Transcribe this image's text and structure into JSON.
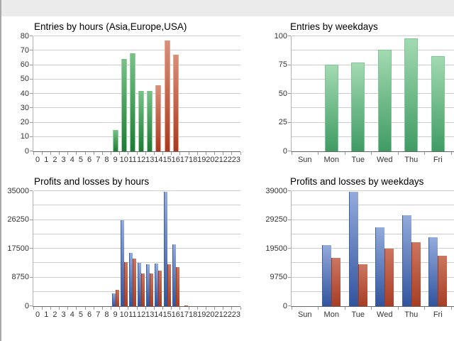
{
  "colors": {
    "topbar": "#ebebeb",
    "window_edge": "#a9a9a9",
    "grid_line": "#cccccc",
    "axis_line": "#666666",
    "axis_side": "#b3b3b3",
    "tick_text": "#333333",
    "title_text": "#000000",
    "green_top": "#79c289",
    "green_bottom": "#1d7c33",
    "green_edge": "#9ccfa6",
    "red_top": "#da9078",
    "red_bottom": "#aa3a20",
    "red_edge": "#e0a795",
    "green2_top": "#a3dab1",
    "green2_bottom": "#3f9b63",
    "green2_edge": "#7fc596",
    "blue_top": "#94abdc",
    "blue_bottom": "#31549e",
    "blue_edge": "#3b5ca6",
    "red2_top": "#cc7660",
    "red2_bottom": "#a83e24",
    "red2_edge": "#9e3a20"
  },
  "chart_data": [
    {
      "type": "bar",
      "title": "Entries by hours (Asia,Europe,USA)",
      "xlabel": "",
      "ylabel": "",
      "ylim": [
        0,
        80
      ],
      "y_tick_labels": [
        0,
        10,
        20,
        30,
        40,
        50,
        60,
        70,
        80
      ],
      "grid_divisions": 8,
      "grid": true,
      "legend": "none",
      "categories": [
        "0",
        "1",
        "2",
        "3",
        "4",
        "5",
        "6",
        "7",
        "8",
        "9",
        "10",
        "11",
        "12",
        "13",
        "14",
        "15",
        "16",
        "17",
        "18",
        "19",
        "20",
        "21",
        "22",
        "23"
      ],
      "series": [
        {
          "name": "entries",
          "values": [
            null,
            null,
            null,
            null,
            null,
            null,
            null,
            null,
            null,
            15,
            64,
            68,
            42,
            42,
            46,
            77,
            67,
            null,
            null,
            null,
            null,
            null,
            null,
            null
          ],
          "point_colors": [
            null,
            null,
            null,
            null,
            null,
            null,
            null,
            null,
            null,
            "green",
            "green",
            "green",
            "green",
            "green",
            "red",
            "red",
            "red",
            null,
            null,
            null,
            null,
            null,
            null,
            null
          ]
        }
      ]
    },
    {
      "type": "bar",
      "title": "Entries by weekdays",
      "xlabel": "",
      "ylabel": "",
      "ylim": [
        0,
        100
      ],
      "y_tick_labels": [
        0,
        25,
        50,
        75,
        100
      ],
      "grid_divisions": 8,
      "grid": true,
      "legend": "none",
      "categories": [
        "Sun",
        "Mon",
        "Tue",
        "Wed",
        "Thu",
        "Fri"
      ],
      "series": [
        {
          "name": "entries",
          "color": "green2",
          "values": [
            null,
            75,
            77,
            88,
            98,
            83
          ]
        }
      ]
    },
    {
      "type": "bar",
      "title": "Profits and losses by hours",
      "xlabel": "",
      "ylabel": "",
      "ylim": [
        0,
        35000
      ],
      "y_tick_labels": [
        0,
        8750,
        17500,
        26250,
        35000
      ],
      "grid_divisions": 8,
      "grid": true,
      "legend": "none",
      "categories": [
        "0",
        "1",
        "2",
        "3",
        "4",
        "5",
        "6",
        "7",
        "8",
        "9",
        "10",
        "11",
        "12",
        "13",
        "14",
        "15",
        "16",
        "17",
        "18",
        "19",
        "20",
        "21",
        "22",
        "23"
      ],
      "series": [
        {
          "name": "profits",
          "color": "blue",
          "values": [
            null,
            null,
            null,
            null,
            null,
            null,
            null,
            null,
            null,
            3800,
            26200,
            16300,
            13200,
            12800,
            12900,
            34700,
            18700,
            null,
            null,
            null,
            null,
            null,
            null,
            null
          ]
        },
        {
          "name": "losses",
          "color": "red2",
          "values": [
            null,
            null,
            null,
            null,
            null,
            null,
            null,
            null,
            null,
            4900,
            13500,
            14500,
            9900,
            10000,
            10800,
            12800,
            11900,
            200,
            null,
            null,
            null,
            null,
            null,
            null
          ]
        }
      ]
    },
    {
      "type": "bar",
      "title": "Profits and losses by weekdays",
      "xlabel": "",
      "ylabel": "",
      "ylim": [
        0,
        39000
      ],
      "y_tick_labels": [
        0,
        9750,
        19500,
        29250,
        39000
      ],
      "grid_divisions": 8,
      "grid": true,
      "legend": "none",
      "categories": [
        "Sun",
        "Mon",
        "Tue",
        "Wed",
        "Thu",
        "Fri"
      ],
      "series": [
        {
          "name": "profits",
          "color": "blue",
          "values": [
            null,
            20600,
            38700,
            26800,
            30700,
            23300
          ]
        },
        {
          "name": "losses",
          "color": "red2",
          "values": [
            null,
            16400,
            14100,
            19600,
            21600,
            17100
          ]
        }
      ]
    }
  ]
}
